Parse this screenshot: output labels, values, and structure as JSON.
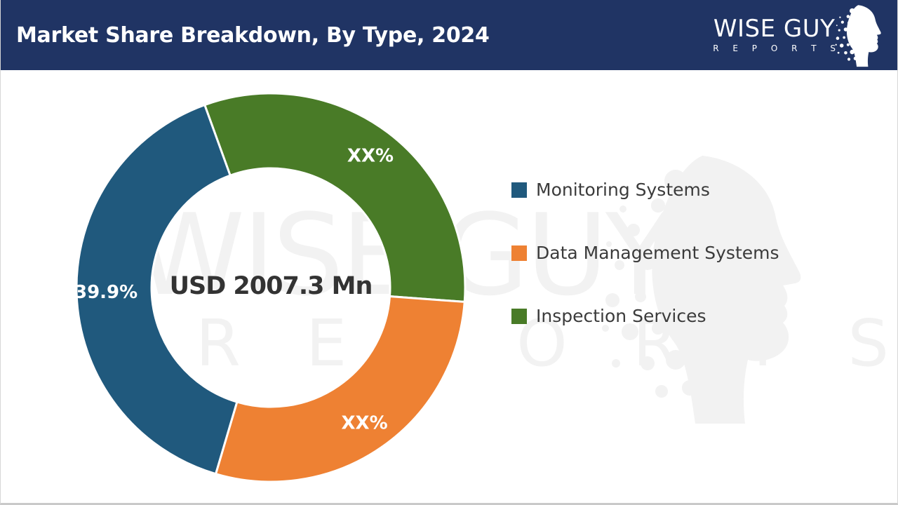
{
  "header": {
    "title": "Market Share Breakdown, By Type, 2024",
    "logo": {
      "line1": "WISE GUY",
      "line2": "R E P O R T S"
    }
  },
  "watermark": {
    "line1": "WISE GUY",
    "line2": "R E P O R T S"
  },
  "colors": {
    "header_bg": "#203464",
    "title_text": "#ffffff",
    "center_text": "#333333",
    "legend_text": "#3b3b3b",
    "slice_gap": "#ffffff",
    "watermark": "#f2f2f2",
    "monitoring_blue": "#20597d",
    "data_mgmt_orange": "#ee8133",
    "inspection_green": "#497b27"
  },
  "chart_data": {
    "type": "pie",
    "subtype": "donut",
    "title": "Market Share Breakdown, By Type, 2024",
    "center_label": "USD 2007.3 Mn",
    "unit": "percent of market share",
    "start_angle_deg": 109.9,
    "direction": "clockwise",
    "legend_position": "right",
    "slices": [
      {
        "name": "Monitoring Systems",
        "value": 39.9,
        "label": "39.9%",
        "color": "#20597d"
      },
      {
        "name": "Data Management Systems",
        "value": 28.4,
        "label": "XX%",
        "color": "#ee8133"
      },
      {
        "name": "Inspection Services",
        "value": 31.7,
        "label": "XX%",
        "color": "#497b27"
      }
    ],
    "draw_order": [
      2,
      1,
      0
    ]
  }
}
